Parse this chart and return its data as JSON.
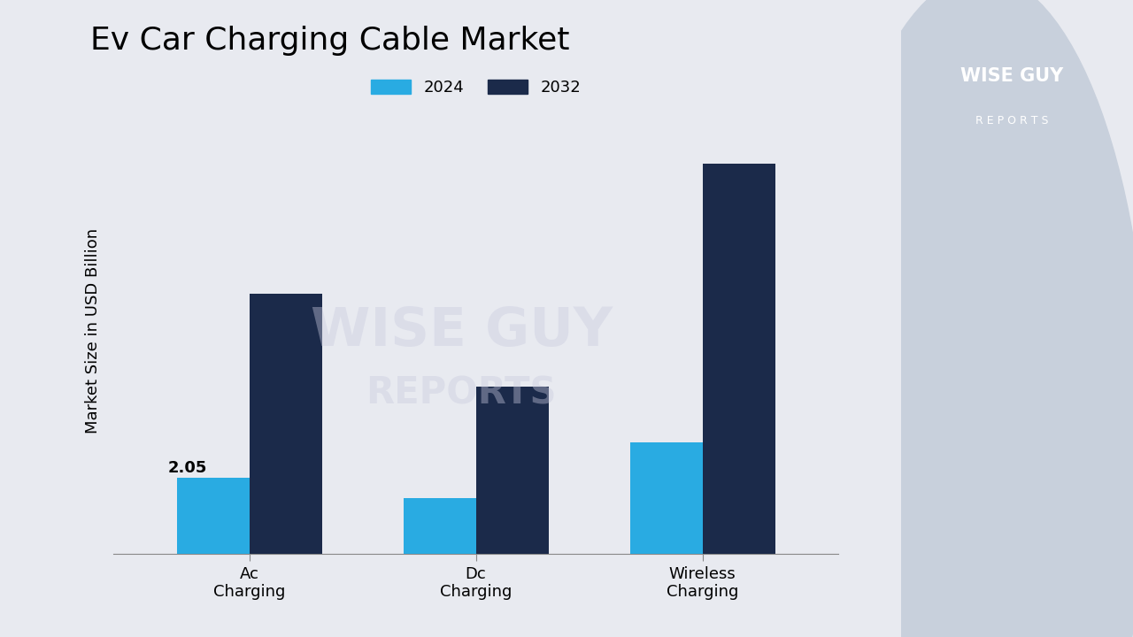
{
  "title": "Ev Car Charging Cable Market",
  "ylabel": "Market Size in USD Billion",
  "categories": [
    "Ac\nCharging",
    "Dc\nCharging",
    "Wireless\nCharging"
  ],
  "values_2024": [
    2.05,
    1.5,
    3.0
  ],
  "values_2032": [
    7.0,
    4.5,
    10.5
  ],
  "color_2024": "#29ABE2",
  "color_2032": "#1B2A4A",
  "bar_width": 0.32,
  "annotation_2024_ac": "2.05",
  "title_fontsize": 26,
  "label_fontsize": 13,
  "legend_fontsize": 13,
  "tick_fontsize": 13,
  "background_color": "#E8EAF0",
  "plot_bg_color": "#E8EAF0",
  "right_panel_color": "#1B2A4A",
  "ylim": [
    0,
    12
  ]
}
